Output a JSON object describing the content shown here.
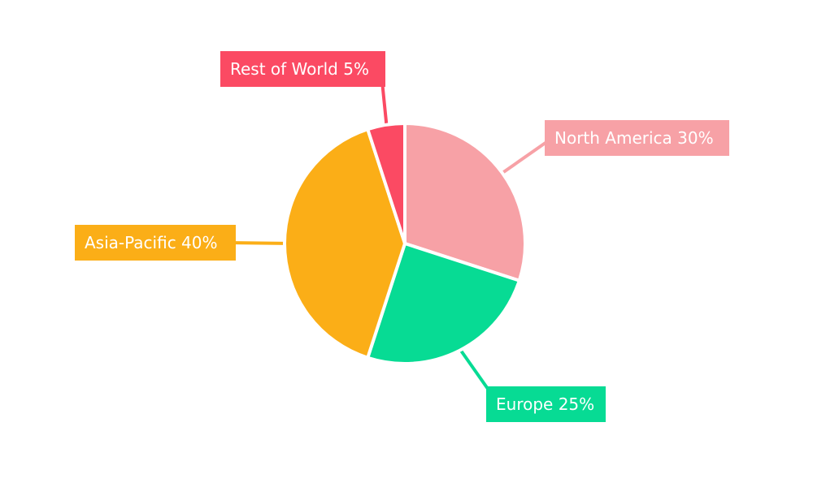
{
  "chart_data": {
    "type": "pie",
    "title": "",
    "legend": "none",
    "background": "#FFFFFF",
    "direction": "clockwise",
    "start_angle_deg": 0,
    "slice_separator_color": "#FFFFFF",
    "label_style": {
      "text_color": "#FFFFFF"
    },
    "slices": [
      {
        "id": "north-america",
        "label": "North America",
        "value": 30,
        "display_label": "North America 30%",
        "color": "#F7A1A6"
      },
      {
        "id": "europe",
        "label": "Europe",
        "value": 25,
        "display_label": "Europe 25%",
        "color": "#07DB94"
      },
      {
        "id": "asia-pacific",
        "label": "Asia-Pacific",
        "value": 40,
        "display_label": "Asia-Pacific 40%",
        "color": "#FBAE17"
      },
      {
        "id": "rest-of-world",
        "label": "Rest of World",
        "value": 5,
        "display_label": "Rest of World 5%",
        "color": "#FB4A63"
      }
    ]
  }
}
